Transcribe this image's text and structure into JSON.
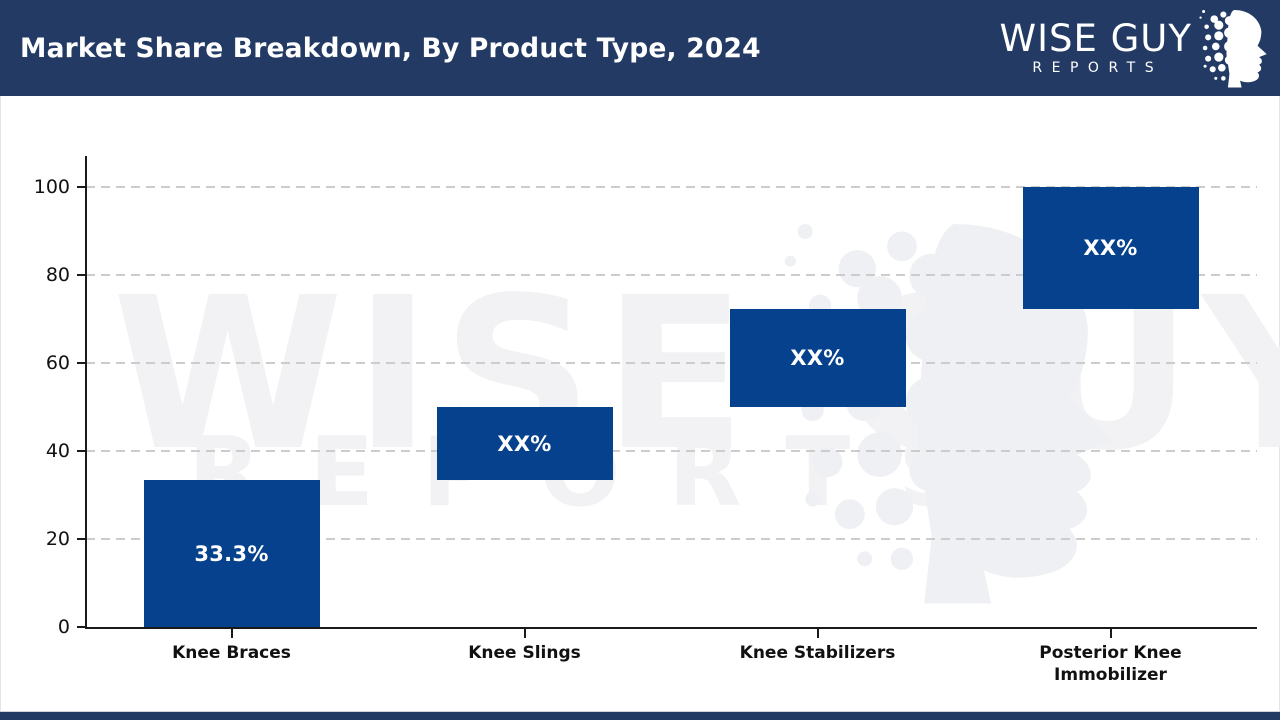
{
  "header": {
    "title": "Market Share Breakdown, By Product Type, 2024",
    "logo_line1": "WISE GUY",
    "logo_line2": "REPORTS"
  },
  "watermark": {
    "line1": "WISE GUY",
    "line2": "REPORTS"
  },
  "colors": {
    "header_bg": "#233a64",
    "footer_bg": "#233a64",
    "bar": "#05418c",
    "bar_label": "#ffffff",
    "gridline": "#cccccc",
    "axis": "#1a1a1a",
    "watermark": "#f2f2f5"
  },
  "chart_data": {
    "type": "bar",
    "subtype": "waterfall",
    "title": "Market Share Breakdown, By Product Type, 2024",
    "categories": [
      "Knee Braces",
      "Knee Slings",
      "Knee Stabilizers",
      "Posterior Knee Immobilizer"
    ],
    "bars": [
      {
        "category": "Knee Braces",
        "start": 0,
        "end": 33.3,
        "value": 33.3,
        "label": "33.3%"
      },
      {
        "category": "Knee Slings",
        "start": 33.3,
        "end": 50.0,
        "value": 16.7,
        "label": "XX%"
      },
      {
        "category": "Knee Stabilizers",
        "start": 50.0,
        "end": 72.2,
        "value": 22.2,
        "label": "XX%"
      },
      {
        "category": "Posterior Knee Immobilizer",
        "start": 72.2,
        "end": 100.0,
        "value": 27.8,
        "label": "XX%"
      }
    ],
    "y_ticks": [
      0,
      20,
      40,
      60,
      80,
      100
    ],
    "ylim": [
      0,
      107
    ],
    "grid": true,
    "legend": false
  }
}
